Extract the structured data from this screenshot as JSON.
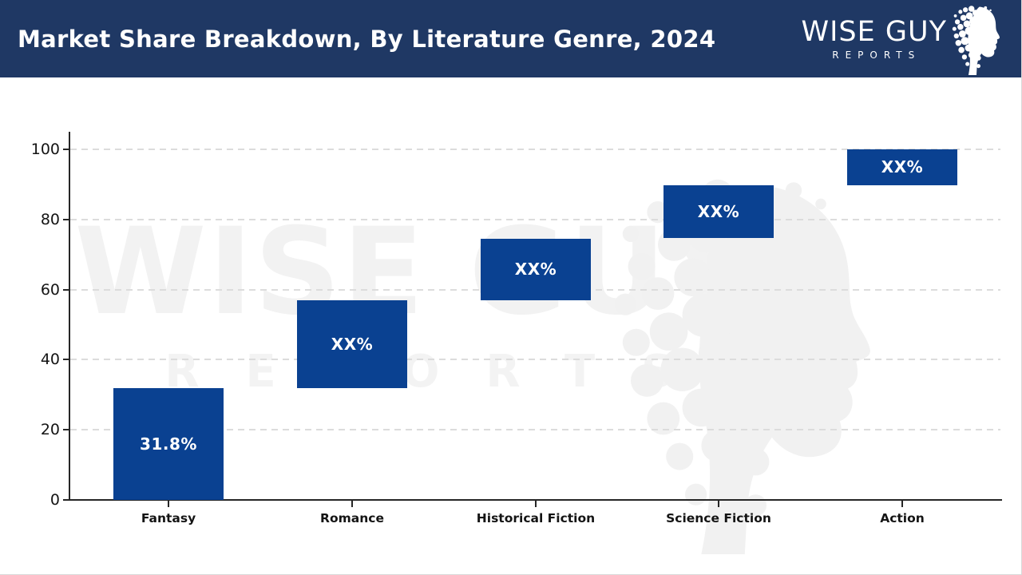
{
  "header": {
    "title": "Market Share Breakdown, By Literature Genre, 2024",
    "background_color": "#1f3864",
    "text_color": "#ffffff",
    "logo": {
      "brand": "WISE GUY",
      "brand_sub": "REPORTS"
    }
  },
  "watermark": {
    "line1": "WISE GUY",
    "line2": "REPORTS"
  },
  "chart_data": {
    "type": "bar",
    "subtype": "waterfall",
    "title": "Market Share Breakdown, By Literature Genre, 2024",
    "categories": [
      "Fantasy",
      "Romance",
      "Historical Fiction",
      "Science Fiction",
      "Action"
    ],
    "segments": [
      {
        "category": "Fantasy",
        "start": 0,
        "end": 31.8,
        "value": 31.8,
        "label": "31.8%"
      },
      {
        "category": "Romance",
        "start": 31.8,
        "end": 57.0,
        "value": 25.2,
        "label": "XX%"
      },
      {
        "category": "Historical Fiction",
        "start": 57.0,
        "end": 74.6,
        "value": 17.6,
        "label": "XX%"
      },
      {
        "category": "Science Fiction",
        "start": 74.6,
        "end": 89.8,
        "value": 15.2,
        "label": "XX%"
      },
      {
        "category": "Action",
        "start": 89.8,
        "end": 100,
        "value": 10.2,
        "label": "XX%"
      }
    ],
    "yticks": [
      0,
      20,
      40,
      60,
      80,
      100
    ],
    "ylim": [
      0,
      105
    ],
    "xlabel": "",
    "ylabel": "",
    "legend": "none",
    "grid": "horizontal-dashed",
    "bar_color": "#0a4191",
    "bar_label_color": "#ffffff",
    "grid_color": "#dcdcdc",
    "axis_color": "#262626"
  }
}
